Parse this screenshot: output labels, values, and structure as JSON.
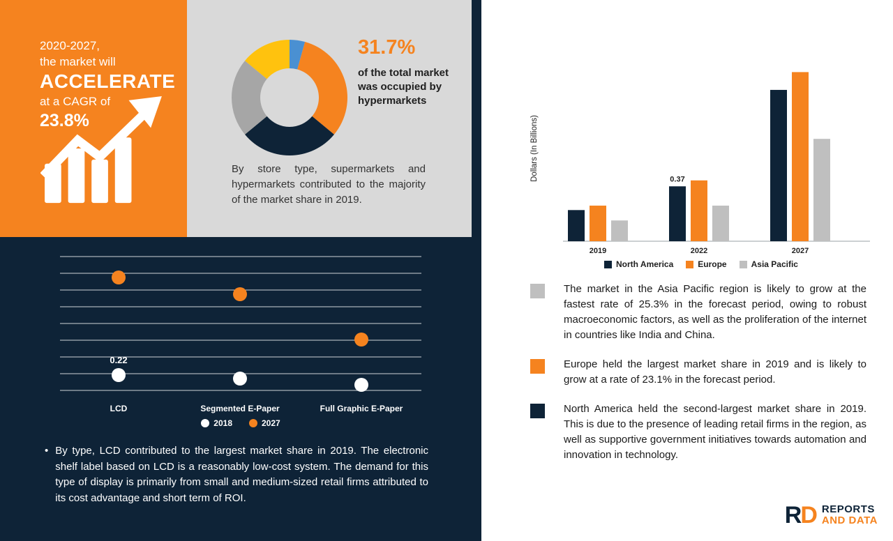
{
  "cagr_panel": {
    "line1": "2020-2027,",
    "line2": "the market will",
    "line3": "ACCELERATE",
    "line4": "at a CAGR of",
    "line5": "23.8%"
  },
  "store_type_panel": {
    "stat_value": "31.7%",
    "stat_caption": "of the total market was occupied by hypermarkets",
    "body": "By store type, supermarkets and hypermarkets contributed to the majority of the market share in 2019."
  },
  "type_panel": {
    "bullet_mark": "•",
    "bullet": "By type, LCD contributed to the largest market share in 2019. The electronic shelf label based on LCD is a reasonably low-cost system. The demand for this type of display is primarily from small and medium-sized retail firms attributed to its cost advantage and short term of ROI."
  },
  "regional_bullets": [
    {
      "color": "#BFBFBF",
      "text": "The market in the Asia Pacific region is likely to grow at the fastest rate of 25.3% in the forecast period, owing to robust macroeconomic factors, as well as the proliferation of the internet in countries like India and China."
    },
    {
      "color": "#F5831F",
      "text": "Europe held the largest market share in 2019 and is likely to grow at a rate of 23.1% in the forecast period."
    },
    {
      "color": "#0E2337",
      "text": "North America held the second-largest market share in 2019. This is due to the presence of leading retail firms in the region, as well as supportive government initiatives towards automation and innovation in technology."
    }
  ],
  "logo": {
    "monogram_r": "R",
    "monogram_d": "D",
    "line1": "REPORTS",
    "line2": "AND DATA"
  },
  "colors": {
    "orange": "#F5831F",
    "navy": "#0E2337",
    "panel_gray": "#D9D9D9",
    "bar_gray": "#BFBFBF",
    "donut_gray": "#A6A6A6",
    "yellow": "#FFC20E",
    "blue": "#4A90D2"
  },
  "chart_data": [
    {
      "id": "store-type-share-donut",
      "type": "pie",
      "donut": true,
      "slices": [
        {
          "label": "segment-blue",
          "value": 4.3,
          "color": "#4A90D2"
        },
        {
          "label": "hypermarkets",
          "value": 31.7,
          "color": "#F5831F"
        },
        {
          "label": "segment-navy",
          "value": 28.0,
          "color": "#0E2337"
        },
        {
          "label": "segment-gray",
          "value": 22.0,
          "color": "#A6A6A6"
        },
        {
          "label": "segment-yellow",
          "value": 14.0,
          "color": "#FFC20E"
        }
      ]
    },
    {
      "id": "type-dot-plot",
      "type": "scatter",
      "categories": [
        "LCD",
        "Segmented E-Paper",
        "Full Graphic E-Paper"
      ],
      "series": [
        {
          "name": "2018",
          "color": "#FFFFFF",
          "values": [
            0.22,
            0.17,
            0.08
          ]
        },
        {
          "name": "2027",
          "color": "#F5831F",
          "values": [
            1.62,
            1.38,
            0.73
          ]
        }
      ],
      "ylim": [
        0,
        1.92
      ],
      "gridlines": 9,
      "visible_value_labels": [
        {
          "series": "2018",
          "category": "LCD",
          "text": "0.22"
        }
      ],
      "legend_position": "bottom"
    },
    {
      "id": "regional-bar-chart",
      "type": "bar",
      "ylabel": "Dollars (In Billions)",
      "categories": [
        "2019",
        "2022",
        "2027"
      ],
      "series": [
        {
          "name": "North America",
          "color": "#0E2337",
          "values": [
            0.21,
            0.37,
            1.02
          ]
        },
        {
          "name": "Europe",
          "color": "#F5831F",
          "values": [
            0.24,
            0.41,
            1.14
          ]
        },
        {
          "name": "Asia Pacific",
          "color": "#BFBFBF",
          "values": [
            0.14,
            0.24,
            0.69
          ]
        }
      ],
      "ylim": [
        0,
        1.25
      ],
      "visible_value_labels": [
        {
          "series": "North America",
          "category": "2022",
          "text": "0.37"
        }
      ],
      "legend_position": "bottom"
    }
  ]
}
